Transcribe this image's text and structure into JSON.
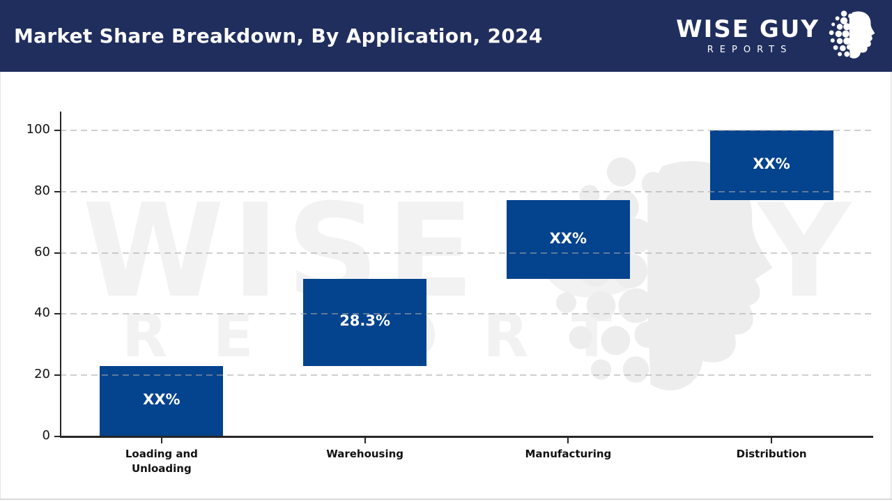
{
  "header": {
    "title": "Market Share Breakdown, By Application, 2024",
    "bg_color": "#202e5e",
    "logo": {
      "wordmark": "WISE GUY",
      "subtext": "REPORTS"
    }
  },
  "watermark": {
    "line1": "WISE GUY",
    "line2": "REPORTS"
  },
  "chart_data": {
    "type": "bar",
    "subtype": "waterfall",
    "title": "Market Share Breakdown, By Application, 2024",
    "categories": [
      "Loading and Unloading",
      "Warehousing",
      "Manufacturing",
      "Distribution"
    ],
    "segments": [
      {
        "category": "Loading and Unloading",
        "start": 0,
        "end": 23.1,
        "size": 23.1,
        "label": "XX%"
      },
      {
        "category": "Warehousing",
        "start": 23.1,
        "end": 51.4,
        "size": 28.3,
        "label": "28.3%"
      },
      {
        "category": "Manufacturing",
        "start": 51.4,
        "end": 77.2,
        "size": 25.8,
        "label": "XX%"
      },
      {
        "category": "Distribution",
        "start": 77.2,
        "end": 100,
        "size": 22.8,
        "label": "XX%"
      }
    ],
    "yticks": [
      0,
      20,
      40,
      60,
      80,
      100
    ],
    "ylim": [
      0,
      100
    ],
    "xlabel": "",
    "ylabel": "",
    "grid": "horizontal-dashed",
    "legend": "none",
    "bar_color": "#04438d",
    "bar_label_color": "#ffffff"
  }
}
